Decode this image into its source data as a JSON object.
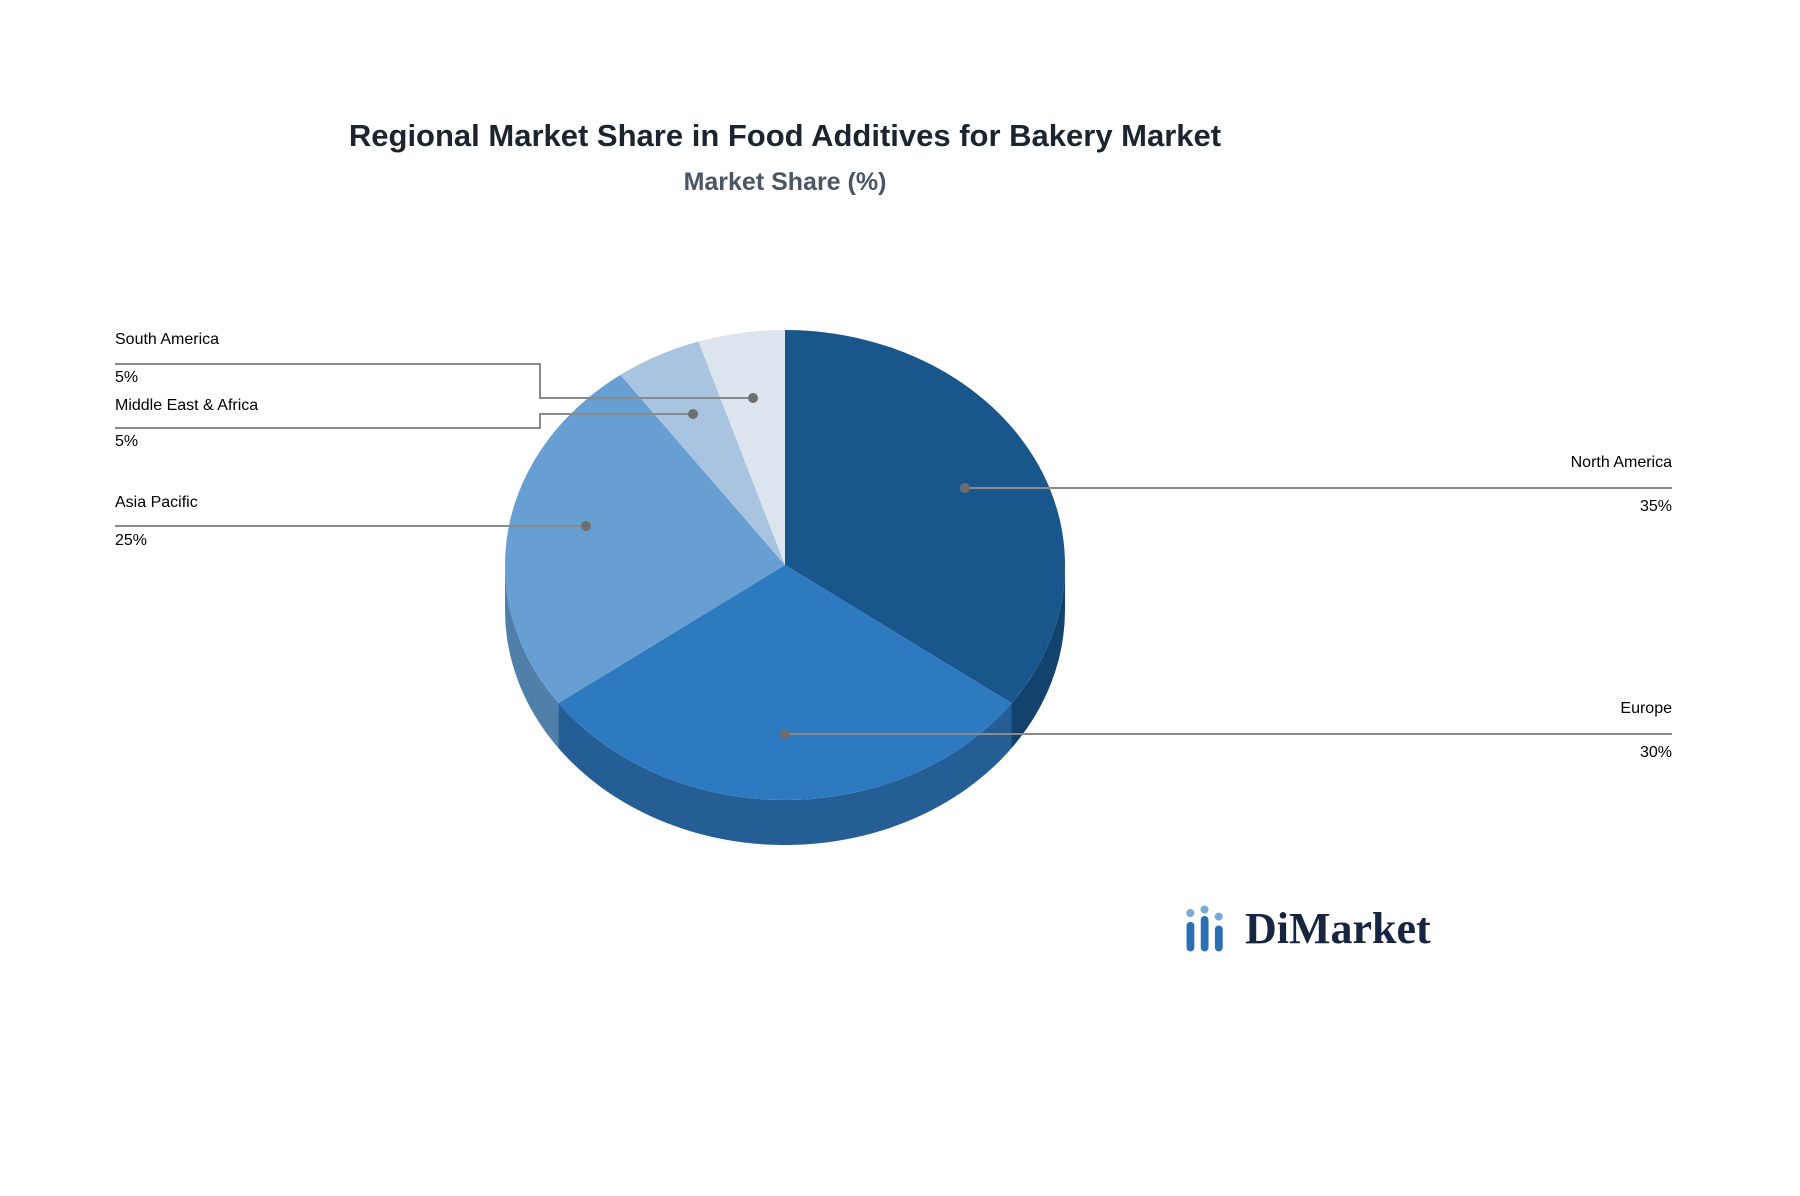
{
  "title": "Regional Market Share in Food Additives for Bakery Market",
  "subtitle": "Market Share (%)",
  "chart_data": {
    "type": "pie",
    "title": "Regional Market Share in Food Additives for Bakery Market",
    "subtitle": "Market Share (%)",
    "unit": "%",
    "style": "3d-pie",
    "start_angle": "12-o-clock",
    "direction": "clockwise",
    "legend": "none",
    "slices": [
      {
        "label": "North America",
        "value": 35,
        "pct_label": "35%",
        "color": "#19568c",
        "side_color": "#12436f"
      },
      {
        "label": "Europe",
        "value": 30,
        "pct_label": "30%",
        "color": "#2e7ac1",
        "side_color": "#245e95"
      },
      {
        "label": "Asia Pacific",
        "value": 25,
        "pct_label": "25%",
        "color": "#689fd3",
        "side_color": "#5080aa"
      },
      {
        "label": "Middle East & Africa",
        "value": 5,
        "pct_label": "5%",
        "color": "#a9c4e0",
        "side_color": "#8fa8c4"
      },
      {
        "label": "South America",
        "value": 5,
        "pct_label": "5%",
        "color": "#dce4ee",
        "side_color": "#bac7d6"
      }
    ],
    "callout_line_color": "#8a8a8a",
    "callout_dot_color": "#6e6e6e"
  },
  "branding": {
    "logo_text": "DiMarket",
    "logo_text_color": "#172540",
    "logo_icon": "mini-bar-chart-icon",
    "logo_bar_color": "#2a6fb5",
    "logo_dot_color": "#7aa9d8"
  }
}
